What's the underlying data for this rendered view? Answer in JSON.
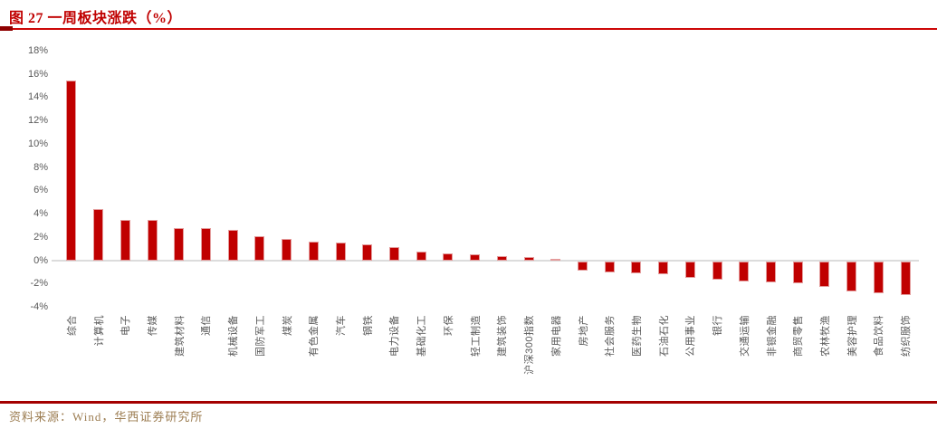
{
  "figure": {
    "title": "图 27 一周板块涨跌（%）"
  },
  "source": {
    "text": "资料来源：Wind，华西证券研究所"
  },
  "colors": {
    "accent_red": "#C00000",
    "title_rule": "#CC0707",
    "title_rule_notch": "#8E0000",
    "bottom_rule": "#A40000",
    "bar_fill": "#C00000",
    "bar_border": "#E49C9C",
    "axis_text": "#595959",
    "zero_line": "#DCDCDC",
    "source_text": "#9C7D52"
  },
  "chart_data": {
    "type": "bar",
    "title": "一周板块涨跌（%）",
    "xlabel": "",
    "ylabel": "",
    "ylim": [
      -4,
      18
    ],
    "ytick_step": 2,
    "ytick_labels": [
      "18%",
      "16%",
      "14%",
      "12%",
      "10%",
      "8%",
      "6%",
      "4%",
      "2%",
      "0%",
      "-2%",
      "-4%"
    ],
    "grid": false,
    "legend_position": "none",
    "categories": [
      "综合",
      "计算机",
      "电子",
      "传媒",
      "建筑材料",
      "通信",
      "机械设备",
      "国防军工",
      "煤炭",
      "有色金属",
      "汽车",
      "钢铁",
      "电力设备",
      "基础化工",
      "环保",
      "轻工制造",
      "建筑装饰",
      "沪深300指数",
      "家用电器",
      "房地产",
      "社会服务",
      "医药生物",
      "石油石化",
      "公用事业",
      "银行",
      "交通运输",
      "非银金融",
      "商贸零售",
      "农林牧渔",
      "美容护理",
      "食品饮料",
      "纺织服饰"
    ],
    "values": [
      15.4,
      4.4,
      3.5,
      3.5,
      2.8,
      2.8,
      2.6,
      2.1,
      1.8,
      1.6,
      1.5,
      1.4,
      1.1,
      0.75,
      0.6,
      0.5,
      0.35,
      0.3,
      0.1,
      -0.8,
      -0.95,
      -1.05,
      -1.1,
      -1.45,
      -1.6,
      -1.75,
      -1.8,
      -1.9,
      -2.25,
      -2.6,
      -2.75,
      -2.9
    ]
  }
}
